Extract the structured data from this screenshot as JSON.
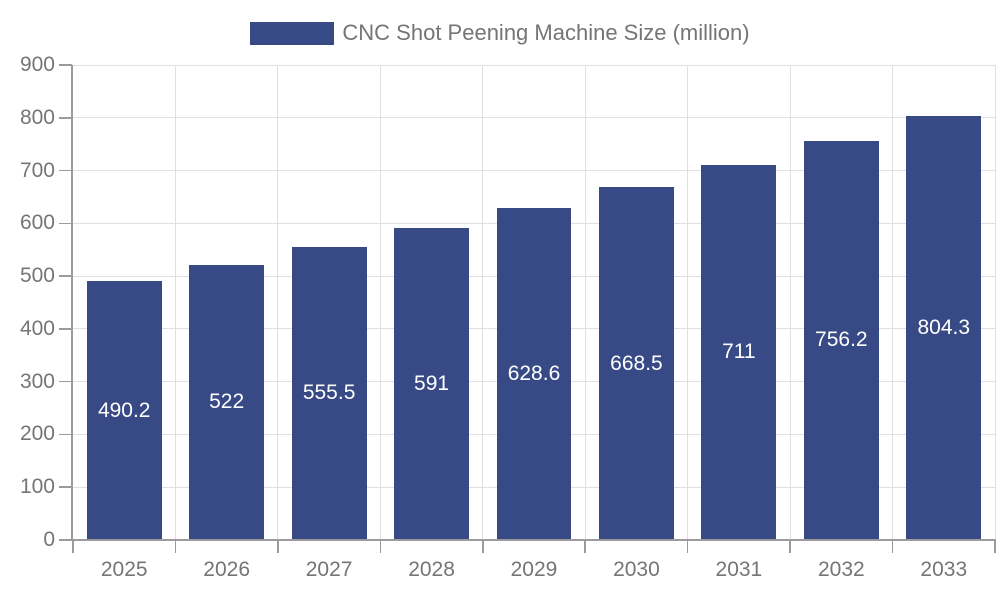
{
  "legend": {
    "label": "CNC Shot Peening Machine Size (million)"
  },
  "colors": {
    "bar": "#374A85",
    "axis_label": "#757575",
    "legend_text": "#757575",
    "grid_line": "#E0E0E0",
    "axis_line": "#9B9B9B",
    "value_label": "#FFFFFF",
    "background": "#FFFFFF"
  },
  "chart_data": {
    "type": "bar",
    "title": "CNC Shot Peening Machine Size (million)",
    "categories": [
      "2025",
      "2026",
      "2027",
      "2028",
      "2029",
      "2030",
      "2031",
      "2032",
      "2033"
    ],
    "values": [
      490.2,
      522,
      555.5,
      591,
      628.6,
      668.5,
      711,
      756.2,
      804.3
    ],
    "value_labels": [
      "490.2",
      "522",
      "555.5",
      "591",
      "628.6",
      "668.5",
      "711",
      "756.2",
      "804.3"
    ],
    "series_name": "CNC Shot Peening Machine Size (million)",
    "xlabel": "",
    "ylabel": "",
    "ylim": [
      0,
      900
    ],
    "ytick_interval": 100,
    "yticks": [
      "0",
      "100",
      "200",
      "300",
      "400",
      "500",
      "600",
      "700",
      "800",
      "900"
    ],
    "grid": true,
    "grid_vertical": true,
    "legend_position": "top-center",
    "value_label_position": "inside-middle"
  }
}
